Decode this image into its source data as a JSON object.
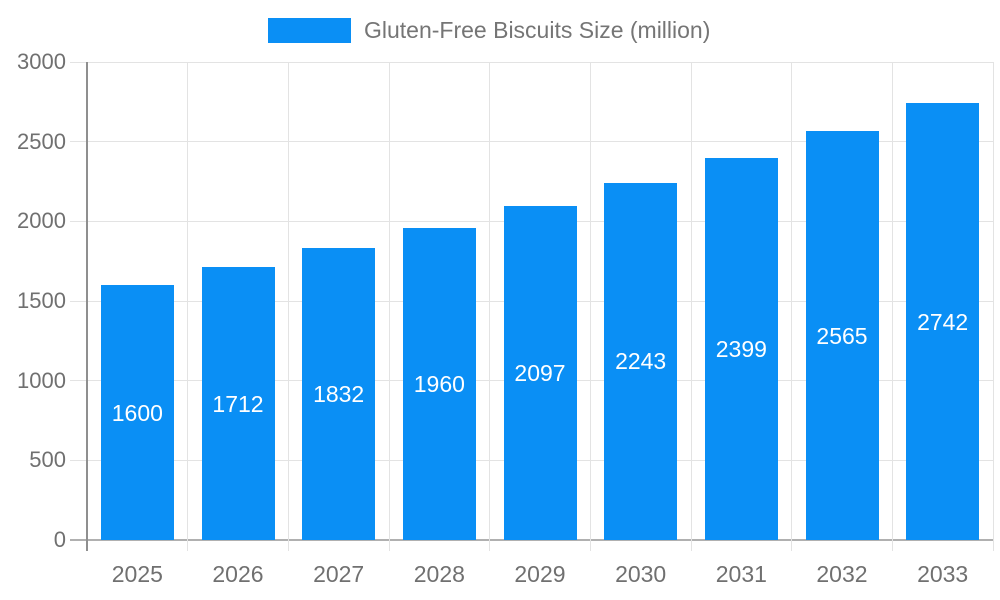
{
  "legend": {
    "label": "Gluten-Free Biscuits Size (million)"
  },
  "chart_data": {
    "type": "bar",
    "title": "Gluten-Free Biscuits Size (million)",
    "categories": [
      "2025",
      "2026",
      "2027",
      "2028",
      "2029",
      "2030",
      "2031",
      "2032",
      "2033"
    ],
    "values": [
      1600,
      1712,
      1832,
      1960,
      2097,
      2243,
      2399,
      2565,
      2742
    ],
    "xlabel": "",
    "ylabel": "",
    "ylim": [
      0,
      3000
    ],
    "yticks": [
      0,
      500,
      1000,
      1500,
      2000,
      2500,
      3000
    ],
    "grid": true,
    "legend_position": "top",
    "value_labels": "inside-center",
    "colors": {
      "bar": "#0a8ff5",
      "value_label": "#ffffff",
      "axis_text": "#707070",
      "legend_text": "#757575",
      "gridline": "#e3e3e3",
      "baseline": "#b0b0b0",
      "axis_line": "#8f8f8f",
      "background": "#ffffff"
    }
  }
}
